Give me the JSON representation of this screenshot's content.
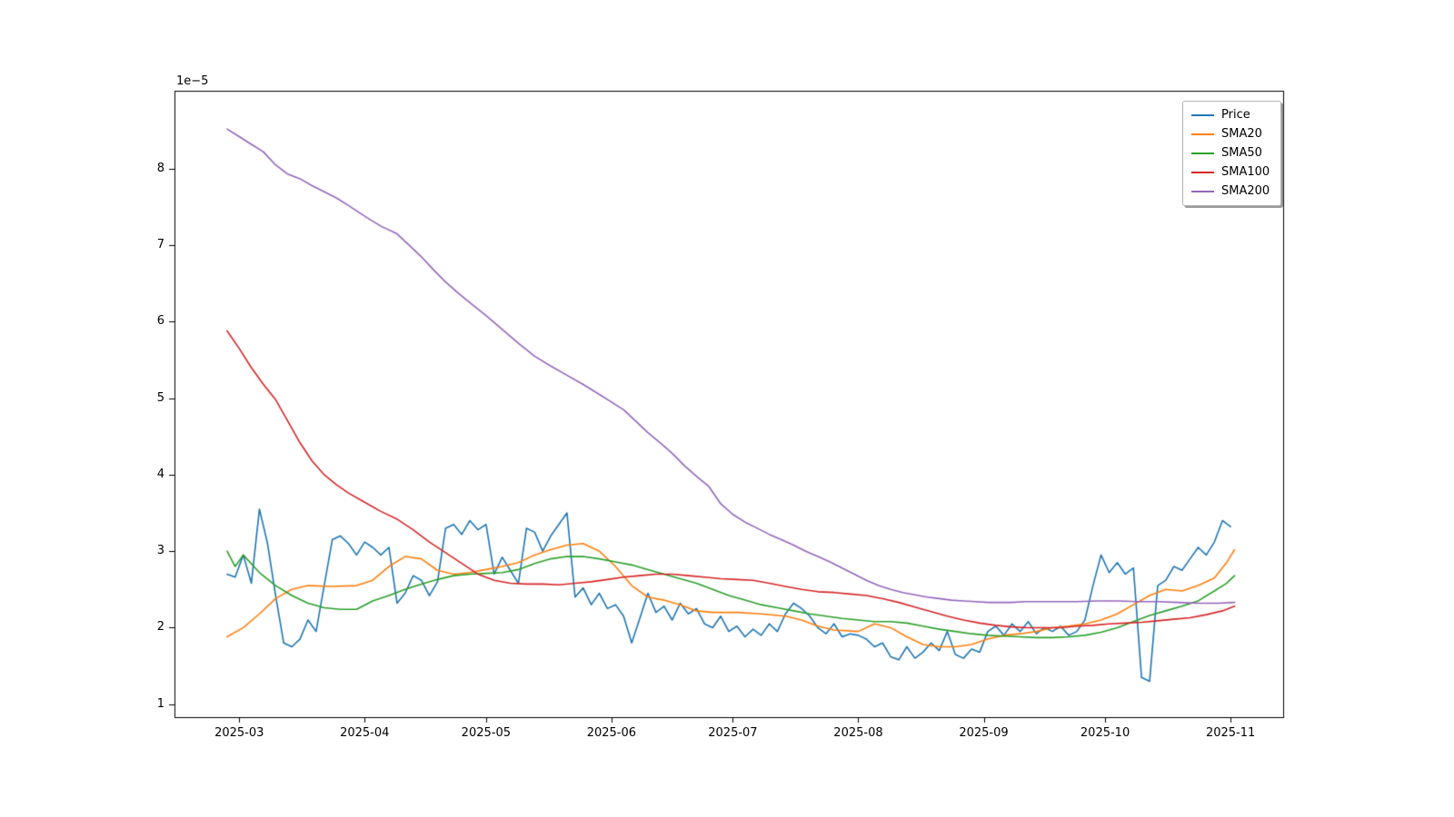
{
  "figure": {
    "background": "#ffffff"
  },
  "chart_data": {
    "type": "line",
    "title": "",
    "xlabel": "",
    "ylabel": "",
    "offset_text": "1e−5",
    "grid": false,
    "legend_position": "upper right",
    "x_unit": "days since 2025-02-26",
    "xlim": [
      -13,
      261
    ],
    "ylim": [
      0.83,
      9.02
    ],
    "y_ticks": [
      1,
      2,
      3,
      4,
      5,
      6,
      7,
      8
    ],
    "x_ticks": [
      {
        "label": "2025-03",
        "day": 3
      },
      {
        "label": "2025-04",
        "day": 34
      },
      {
        "label": "2025-05",
        "day": 64
      },
      {
        "label": "2025-06",
        "day": 95
      },
      {
        "label": "2025-07",
        "day": 125
      },
      {
        "label": "2025-08",
        "day": 156
      },
      {
        "label": "2025-09",
        "day": 187
      },
      {
        "label": "2025-10",
        "day": 217
      },
      {
        "label": "2025-11",
        "day": 248
      }
    ],
    "series": [
      {
        "name": "Price",
        "color": "#1f77b4",
        "x_start": 0,
        "x_step": 2,
        "y": [
          2.7,
          2.66,
          2.95,
          2.58,
          3.55,
          3.1,
          2.42,
          1.8,
          1.75,
          1.85,
          2.1,
          1.95,
          2.55,
          3.15,
          3.2,
          3.1,
          2.95,
          3.12,
          3.05,
          2.95,
          3.05,
          2.32,
          2.45,
          2.68,
          2.62,
          2.42,
          2.6,
          3.3,
          3.35,
          3.22,
          3.4,
          3.28,
          3.35,
          2.7,
          2.92,
          2.75,
          2.58,
          3.3,
          3.25,
          3.0,
          3.2,
          3.35,
          3.5,
          2.4,
          2.52,
          2.3,
          2.45,
          2.25,
          2.3,
          2.15,
          1.8,
          2.12,
          2.45,
          2.2,
          2.28,
          2.1,
          2.32,
          2.18,
          2.25,
          2.05,
          2.0,
          2.15,
          1.95,
          2.02,
          1.88,
          1.98,
          1.9,
          2.05,
          1.95,
          2.18,
          2.32,
          2.25,
          2.15,
          2.0,
          1.92,
          2.05,
          1.88,
          1.92,
          1.9,
          1.85,
          1.75,
          1.8,
          1.62,
          1.58,
          1.75,
          1.6,
          1.68,
          1.8,
          1.7,
          1.95,
          1.65,
          1.6,
          1.72,
          1.68,
          1.95,
          2.02,
          1.9,
          2.05,
          1.95,
          2.08,
          1.92,
          2.0,
          1.95,
          2.02,
          1.9,
          1.95,
          2.1,
          2.55,
          2.95,
          2.72,
          2.85,
          2.7,
          2.78,
          1.35,
          1.3,
          2.55,
          2.62,
          2.8,
          2.75,
          2.9,
          3.05,
          2.95,
          3.12,
          3.4,
          3.32
        ]
      },
      {
        "name": "SMA20",
        "color": "#ff7f0e",
        "x": [
          0,
          4,
          8,
          12,
          16,
          20,
          26,
          32,
          36,
          40,
          44,
          48,
          52,
          56,
          60,
          64,
          68,
          72,
          76,
          80,
          84,
          88,
          92,
          96,
          100,
          104,
          108,
          112,
          116,
          120,
          126,
          132,
          138,
          142,
          146,
          150,
          156,
          160,
          164,
          168,
          172,
          176,
          180,
          184,
          188,
          192,
          196,
          200,
          204,
          208,
          212,
          216,
          220,
          224,
          228,
          232,
          236,
          240,
          244,
          247,
          249
        ],
        "y": [
          1.88,
          2.0,
          2.18,
          2.38,
          2.5,
          2.55,
          2.54,
          2.55,
          2.62,
          2.8,
          2.93,
          2.9,
          2.75,
          2.7,
          2.72,
          2.76,
          2.8,
          2.85,
          2.95,
          3.02,
          3.08,
          3.1,
          3.0,
          2.8,
          2.55,
          2.4,
          2.36,
          2.3,
          2.22,
          2.2,
          2.2,
          2.18,
          2.15,
          2.1,
          2.02,
          1.97,
          1.95,
          2.05,
          2.0,
          1.88,
          1.78,
          1.75,
          1.75,
          1.78,
          1.85,
          1.9,
          1.92,
          1.95,
          2.0,
          2.02,
          2.05,
          2.1,
          2.18,
          2.3,
          2.42,
          2.5,
          2.48,
          2.55,
          2.65,
          2.85,
          3.02
        ]
      },
      {
        "name": "SMA50",
        "color": "#2ca02c",
        "x": [
          0,
          2,
          4,
          8,
          12,
          16,
          20,
          24,
          28,
          32,
          36,
          40,
          44,
          48,
          52,
          56,
          60,
          64,
          68,
          72,
          76,
          80,
          84,
          88,
          92,
          96,
          100,
          104,
          108,
          112,
          116,
          120,
          124,
          128,
          132,
          136,
          140,
          144,
          148,
          152,
          156,
          160,
          164,
          168,
          172,
          176,
          180,
          184,
          188,
          192,
          196,
          200,
          204,
          208,
          212,
          216,
          220,
          224,
          228,
          232,
          236,
          240,
          244,
          247,
          249
        ],
        "y": [
          3.0,
          2.8,
          2.95,
          2.72,
          2.55,
          2.42,
          2.32,
          2.26,
          2.24,
          2.24,
          2.35,
          2.42,
          2.5,
          2.57,
          2.63,
          2.68,
          2.7,
          2.71,
          2.72,
          2.76,
          2.84,
          2.9,
          2.93,
          2.93,
          2.9,
          2.86,
          2.82,
          2.76,
          2.7,
          2.64,
          2.58,
          2.5,
          2.42,
          2.36,
          2.3,
          2.26,
          2.22,
          2.18,
          2.15,
          2.12,
          2.1,
          2.08,
          2.08,
          2.06,
          2.02,
          1.98,
          1.95,
          1.92,
          1.9,
          1.89,
          1.88,
          1.87,
          1.87,
          1.88,
          1.9,
          1.94,
          2.0,
          2.08,
          2.16,
          2.22,
          2.28,
          2.35,
          2.48,
          2.58,
          2.68
        ]
      },
      {
        "name": "SMA100",
        "color": "#d62728",
        "x": [
          0,
          3,
          6,
          9,
          12,
          15,
          18,
          21,
          24,
          27,
          30,
          34,
          38,
          42,
          46,
          50,
          54,
          58,
          62,
          66,
          70,
          74,
          78,
          82,
          86,
          90,
          94,
          98,
          102,
          106,
          110,
          114,
          118,
          122,
          126,
          130,
          134,
          138,
          142,
          146,
          150,
          154,
          158,
          162,
          166,
          170,
          174,
          178,
          182,
          186,
          190,
          194,
          198,
          202,
          206,
          210,
          214,
          218,
          222,
          226,
          230,
          234,
          238,
          242,
          246,
          249
        ],
        "y": [
          5.88,
          5.65,
          5.4,
          5.18,
          4.98,
          4.7,
          4.42,
          4.18,
          4.0,
          3.87,
          3.76,
          3.64,
          3.52,
          3.42,
          3.28,
          3.12,
          2.98,
          2.84,
          2.7,
          2.62,
          2.58,
          2.57,
          2.57,
          2.56,
          2.58,
          2.6,
          2.63,
          2.66,
          2.68,
          2.7,
          2.7,
          2.68,
          2.66,
          2.64,
          2.63,
          2.62,
          2.58,
          2.54,
          2.5,
          2.47,
          2.46,
          2.44,
          2.42,
          2.38,
          2.33,
          2.27,
          2.21,
          2.15,
          2.1,
          2.06,
          2.03,
          2.01,
          2.0,
          2.0,
          2.0,
          2.02,
          2.03,
          2.05,
          2.06,
          2.07,
          2.09,
          2.11,
          2.13,
          2.17,
          2.22,
          2.28
        ]
      },
      {
        "name": "SMA200",
        "color": "#9467bd",
        "x": [
          0,
          3,
          6,
          9,
          12,
          15,
          18,
          21,
          24,
          27,
          30,
          34,
          38,
          42,
          45,
          48,
          51,
          54,
          57,
          60,
          64,
          68,
          72,
          76,
          80,
          84,
          88,
          92,
          95,
          98,
          101,
          104,
          107,
          110,
          113,
          116,
          119,
          122,
          125,
          128,
          131,
          134,
          137,
          140,
          143,
          146,
          149,
          152,
          155,
          158,
          161,
          164,
          167,
          170,
          173,
          176,
          179,
          182,
          185,
          188,
          191,
          194,
          197,
          200,
          205,
          210,
          215,
          220,
          225,
          230,
          235,
          240,
          245,
          249
        ],
        "y": [
          8.52,
          8.42,
          8.32,
          8.22,
          8.05,
          7.93,
          7.87,
          7.78,
          7.7,
          7.62,
          7.52,
          7.38,
          7.25,
          7.15,
          7.0,
          6.85,
          6.68,
          6.52,
          6.38,
          6.25,
          6.08,
          5.9,
          5.72,
          5.55,
          5.42,
          5.3,
          5.18,
          5.05,
          4.95,
          4.85,
          4.7,
          4.55,
          4.42,
          4.28,
          4.12,
          3.98,
          3.85,
          3.62,
          3.48,
          3.38,
          3.3,
          3.22,
          3.15,
          3.08,
          3.0,
          2.93,
          2.86,
          2.78,
          2.7,
          2.62,
          2.55,
          2.5,
          2.46,
          2.43,
          2.4,
          2.38,
          2.36,
          2.35,
          2.34,
          2.33,
          2.33,
          2.33,
          2.34,
          2.34,
          2.34,
          2.34,
          2.35,
          2.35,
          2.34,
          2.34,
          2.33,
          2.32,
          2.32,
          2.33
        ]
      }
    ]
  }
}
